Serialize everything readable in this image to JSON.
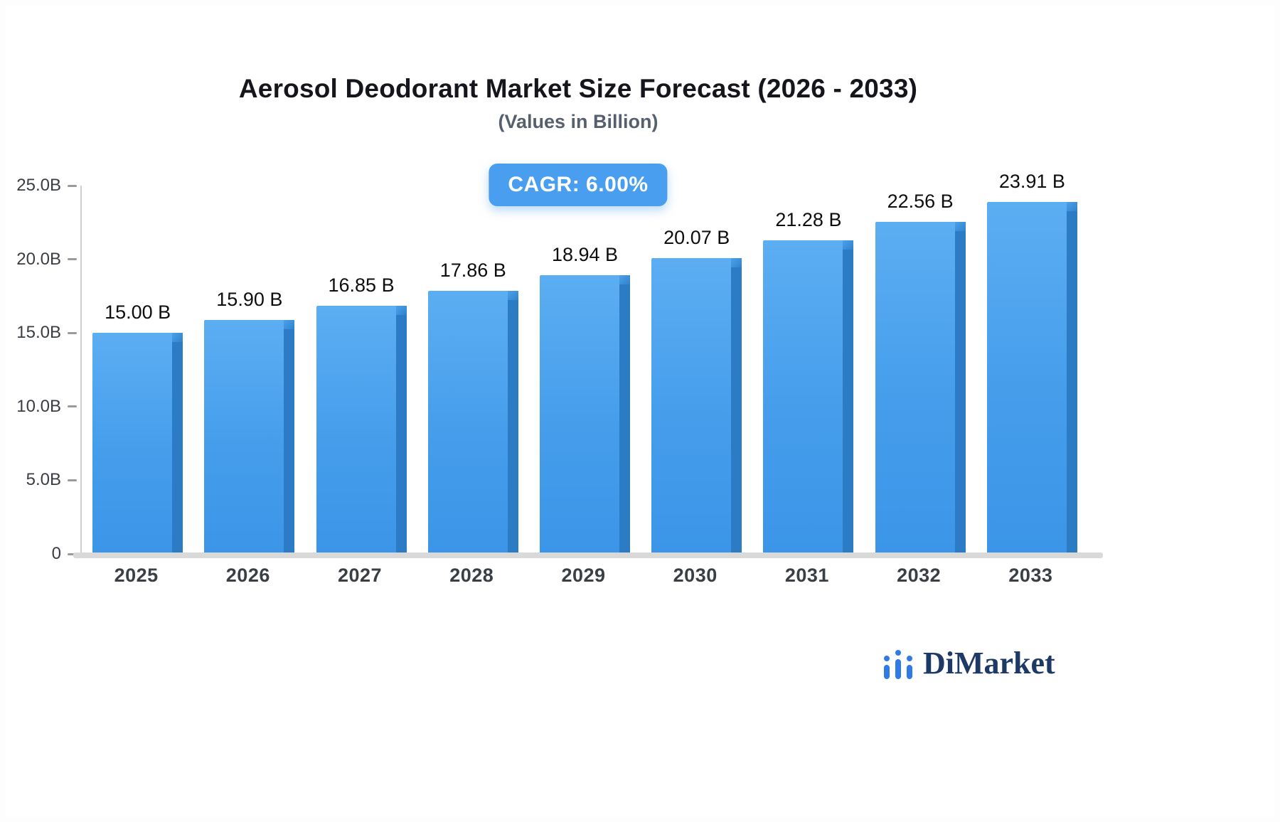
{
  "header": {
    "title": "Aerosol Deodorant Market Size Forecast (2026 - 2033)",
    "subtitle": "(Values in Billion)",
    "cagr_badge": "CAGR: 6.00%"
  },
  "chart_data": {
    "type": "bar",
    "title": "Aerosol Deodorant Market Size Forecast (2026 - 2033)",
    "subtitle": "(Values in Billion)",
    "categories": [
      "2025",
      "2026",
      "2027",
      "2028",
      "2029",
      "2030",
      "2031",
      "2032",
      "2033"
    ],
    "values": [
      15.0,
      15.9,
      16.85,
      17.86,
      18.94,
      20.07,
      21.28,
      22.56,
      23.91
    ],
    "value_labels": [
      "15.00 B",
      "15.90 B",
      "16.85 B",
      "17.86 B",
      "18.94 B",
      "20.07 B",
      "21.28 B",
      "22.56 B",
      "23.91 B"
    ],
    "cagr_label": "CAGR: 6.00%",
    "xlabel": "",
    "ylabel": "",
    "ylim": [
      0,
      25
    ],
    "y_ticks": [
      "0",
      "5.0B",
      "10.0B",
      "15.0B",
      "20.0B",
      "25.0B"
    ],
    "grid": false,
    "legend": false,
    "bar_color_top": "#5caef2",
    "bar_color_bottom": "#3c95e8",
    "bar_side_color": "#2b7cc5",
    "accent_color": "#4a9ef0"
  },
  "logo": {
    "text": "DiMarket",
    "icon": "bar-chart-icon",
    "icon_color": "#2f7ae5",
    "text_color": "#1d3a66"
  }
}
